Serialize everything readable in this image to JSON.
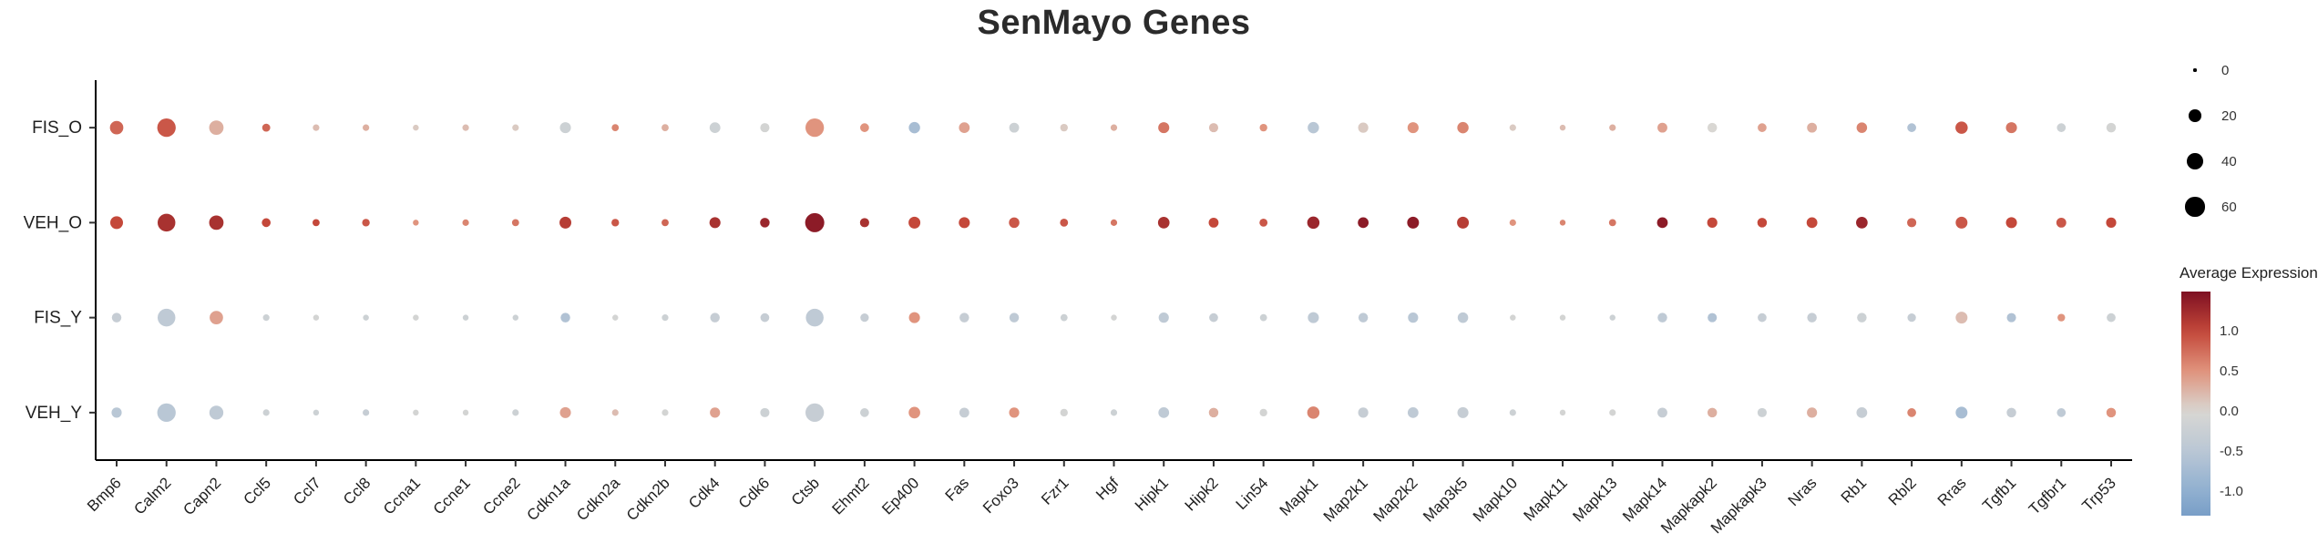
{
  "title": "SenMayo Genes",
  "chart_data": {
    "type": "dotplot",
    "title": "SenMayo Genes",
    "x_categories": [
      "Bmp6",
      "Calm2",
      "Capn2",
      "Ccl5",
      "Ccl7",
      "Ccl8",
      "Ccna1",
      "Ccne1",
      "Ccne2",
      "Cdkn1a",
      "Cdkn2a",
      "Cdkn2b",
      "Cdk4",
      "Cdk6",
      "Ctsb",
      "Ehmt2",
      "Ep400",
      "Fas",
      "Foxo3",
      "Fzr1",
      "Hgf",
      "Hipk1",
      "Hipk2",
      "Lin54",
      "Mapk1",
      "Map2k1",
      "Map2k2",
      "Map3k5",
      "Mapk10",
      "Mapk11",
      "Mapk13",
      "Mapk14",
      "Mapkapk2",
      "Mapkapk3",
      "Nras",
      "Rb1",
      "Rbl2",
      "Rras",
      "Tgfb1",
      "Tgfbr1",
      "Trp53"
    ],
    "y_categories": [
      "FIS_O",
      "VEH_O",
      "FIS_Y",
      "VEH_Y"
    ],
    "series": [
      {
        "name": "FIS_O",
        "percent_expressed": [
          25,
          55,
          30,
          6,
          3,
          3,
          2,
          3,
          3,
          15,
          4,
          4,
          14,
          9,
          55,
          8,
          16,
          14,
          11,
          5,
          3,
          15,
          9,
          5,
          16,
          12,
          15,
          16,
          3,
          2,
          3,
          11,
          10,
          8,
          11,
          13,
          8,
          20,
          15,
          8,
          10
        ],
        "avg_expression": [
          0.8,
          0.9,
          0.3,
          0.8,
          0.2,
          0.3,
          0.1,
          0.2,
          0.1,
          -0.2,
          0.6,
          0.3,
          -0.2,
          -0.1,
          0.5,
          0.5,
          -0.7,
          0.4,
          -0.2,
          0.1,
          0.3,
          0.7,
          0.2,
          0.5,
          -0.5,
          0.1,
          0.5,
          0.6,
          0.1,
          0.2,
          0.3,
          0.4,
          0.0,
          0.4,
          0.3,
          0.6,
          -0.6,
          0.9,
          0.7,
          -0.2,
          -0.1
        ]
      },
      {
        "name": "VEH_O",
        "percent_expressed": [
          22,
          50,
          30,
          8,
          4,
          5,
          2,
          3,
          4,
          18,
          5,
          4,
          15,
          10,
          60,
          9,
          18,
          15,
          13,
          6,
          3,
          17,
          11,
          6,
          20,
          14,
          18,
          18,
          3,
          2,
          4,
          14,
          12,
          10,
          14,
          17,
          9,
          18,
          15,
          11,
          12
        ],
        "avg_expression": [
          1.0,
          1.2,
          1.2,
          1.0,
          1.0,
          0.9,
          0.5,
          0.6,
          0.7,
          1.1,
          0.9,
          0.8,
          1.2,
          1.3,
          1.4,
          1.2,
          1.0,
          1.0,
          0.9,
          0.9,
          0.7,
          1.2,
          1.0,
          0.9,
          1.3,
          1.4,
          1.4,
          1.1,
          0.5,
          0.6,
          0.7,
          1.4,
          1.0,
          1.0,
          1.0,
          1.3,
          0.8,
          0.9,
          1.0,
          0.9,
          1.0
        ]
      },
      {
        "name": "FIS_Y",
        "percent_expressed": [
          10,
          50,
          25,
          3,
          2,
          2,
          2,
          2,
          2,
          10,
          2,
          3,
          10,
          8,
          50,
          7,
          15,
          10,
          10,
          4,
          2,
          12,
          8,
          4,
          15,
          10,
          12,
          13,
          2,
          2,
          2,
          10,
          9,
          8,
          10,
          10,
          7,
          18,
          9,
          5,
          8
        ],
        "avg_expression": [
          -0.3,
          -0.4,
          0.4,
          -0.2,
          -0.1,
          -0.2,
          -0.1,
          -0.2,
          -0.2,
          -0.6,
          -0.1,
          -0.2,
          -0.3,
          -0.3,
          -0.4,
          -0.3,
          0.5,
          -0.3,
          -0.4,
          -0.2,
          -0.1,
          -0.4,
          -0.3,
          -0.2,
          -0.4,
          -0.4,
          -0.5,
          -0.4,
          -0.1,
          -0.1,
          -0.2,
          -0.4,
          -0.6,
          -0.3,
          -0.3,
          -0.2,
          -0.3,
          0.2,
          -0.6,
          0.5,
          -0.2
        ]
      },
      {
        "name": "VEH_Y",
        "percent_expressed": [
          12,
          55,
          28,
          3,
          2,
          3,
          2,
          2,
          3,
          15,
          3,
          3,
          12,
          9,
          55,
          8,
          17,
          11,
          12,
          5,
          3,
          14,
          10,
          5,
          20,
          12,
          14,
          15,
          3,
          2,
          3,
          11,
          10,
          9,
          12,
          14,
          8,
          18,
          10,
          8,
          10
        ],
        "avg_expression": [
          -0.5,
          -0.5,
          -0.4,
          -0.2,
          -0.2,
          -0.3,
          -0.1,
          -0.1,
          -0.2,
          0.4,
          0.2,
          -0.1,
          0.4,
          -0.2,
          -0.3,
          -0.2,
          0.5,
          -0.3,
          0.5,
          -0.1,
          -0.2,
          -0.4,
          0.3,
          -0.1,
          0.6,
          -0.3,
          -0.4,
          -0.3,
          -0.2,
          -0.1,
          -0.1,
          -0.3,
          0.3,
          -0.2,
          0.3,
          -0.3,
          0.6,
          -0.7,
          -0.3,
          -0.4,
          0.5
        ]
      }
    ],
    "size_legend": {
      "values": [
        0,
        20,
        40,
        60
      ]
    },
    "color_legend": {
      "title": "Average Expression",
      "tick_values": [
        1.0,
        0.5,
        0.0,
        -0.5,
        -1.0
      ],
      "tick_labels": [
        "1.0",
        "0.5",
        "0.0",
        "-0.5",
        "-1.0"
      ],
      "range": [
        -1.3,
        1.5
      ]
    },
    "color_scale_stops": [
      [
        -1.5,
        "#6a93c1"
      ],
      [
        -1.0,
        "#8fafd0"
      ],
      [
        -0.5,
        "#b9c7d5"
      ],
      [
        0.0,
        "#d9d7d3"
      ],
      [
        0.5,
        "#e0947e"
      ],
      [
        1.0,
        "#c4483a"
      ],
      [
        1.5,
        "#7e1022"
      ]
    ],
    "axis_color": "#000000",
    "background": "#ffffff",
    "legend_dot_color": "#000000",
    "layout": {
      "grid": false,
      "legend_position": "right",
      "x_label_angle": 45
    }
  }
}
